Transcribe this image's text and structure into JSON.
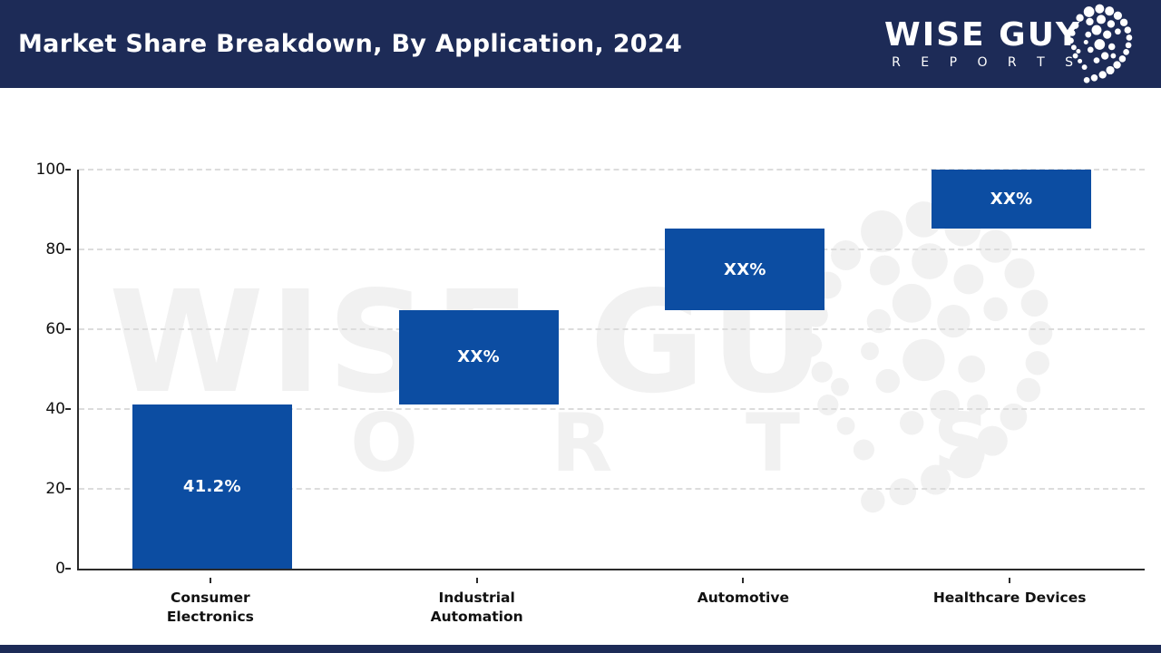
{
  "header": {
    "title": "Market Share Breakdown, By Application, 2024",
    "bg_color": "#1d2b57",
    "logo": {
      "line1": "WISE GUY",
      "line2": "R E P O R T S"
    }
  },
  "watermark": {
    "line1": "WISE GU",
    "line2": "P O R T S"
  },
  "chart_data": {
    "type": "bar",
    "subtype": "waterfall",
    "title": "Market Share Breakdown, By Application, 2024",
    "categories": [
      [
        "Consumer",
        "Electronics"
      ],
      [
        "Industrial",
        "Automation"
      ],
      [
        "Automotive"
      ],
      [
        "Healthcare Devices"
      ]
    ],
    "segments": [
      {
        "category": "Consumer Electronics",
        "start": 0,
        "end": 41.2,
        "label": "41.2%"
      },
      {
        "category": "Industrial Automation",
        "start": 41.2,
        "end": 64.8,
        "label": "XX%"
      },
      {
        "category": "Automotive",
        "start": 64.8,
        "end": 85.2,
        "label": "XX%"
      },
      {
        "category": "Healthcare Devices",
        "start": 85.2,
        "end": 100,
        "label": "XX%"
      }
    ],
    "bar_color": "#0c4da2",
    "ylim": [
      0,
      100
    ],
    "yticks": [
      0,
      20,
      40,
      60,
      80,
      100
    ],
    "xlabel": "",
    "ylabel": "",
    "grid": "dashed-horizontal",
    "legend": "none"
  }
}
